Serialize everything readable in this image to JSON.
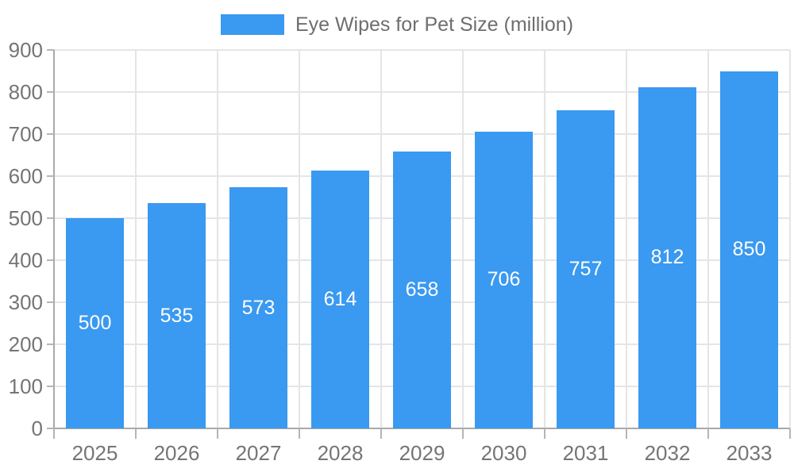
{
  "chart_data": {
    "type": "bar",
    "title": "",
    "legend": "Eye Wipes for Pet Size (million)",
    "categories": [
      "2025",
      "2026",
      "2027",
      "2028",
      "2029",
      "2030",
      "2031",
      "2032",
      "2033"
    ],
    "values": [
      500,
      535,
      573,
      614,
      658,
      706,
      757,
      812,
      850
    ],
    "xlabel": "",
    "ylabel": "",
    "ylim": [
      0,
      900
    ],
    "ytick_step": 100,
    "ytick_labels": [
      "0",
      "100",
      "200",
      "300",
      "400",
      "500",
      "600",
      "700",
      "800",
      "900"
    ],
    "grid": true,
    "legend_position": "top-center",
    "value_labels": "inside-center"
  },
  "colors": {
    "bar": "#3a99f0",
    "grid": "#e5e5e8",
    "axis": "#a9a9a9",
    "tick": "#b5b5b5",
    "axis_label": "#757575",
    "legend_text": "#6e6e6e",
    "value_label": "#ffffff",
    "background": "#ffffff"
  }
}
